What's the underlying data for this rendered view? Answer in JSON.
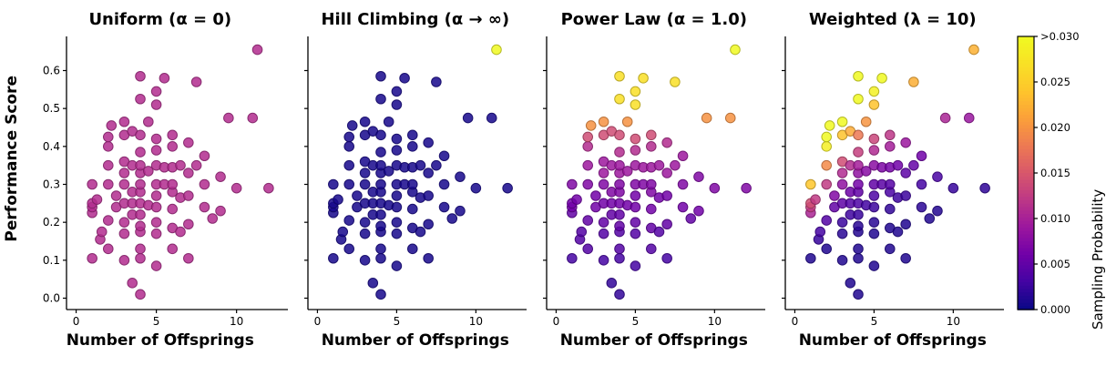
{
  "chart_data": {
    "type": "scatter",
    "xlabel": "Number of Offsprings",
    "ylabel": "Performance Score",
    "colormap": "plasma",
    "xlim": [
      -0.6,
      13.2
    ],
    "ylim": [
      -0.03,
      0.69
    ],
    "x_ticks": {
      "values": [
        0,
        5,
        10
      ],
      "labels": [
        "0",
        "5",
        "10"
      ]
    },
    "y_ticks": {
      "values": [
        0.0,
        0.1,
        0.2,
        0.3,
        0.4,
        0.5,
        0.6
      ],
      "labels": [
        "0.0",
        "0.1",
        "0.2",
        "0.3",
        "0.4",
        "0.5",
        "0.6"
      ]
    },
    "points": [
      [
        1,
        0.105
      ],
      [
        1,
        0.225
      ],
      [
        1,
        0.24
      ],
      [
        1,
        0.25
      ],
      [
        1,
        0.3
      ],
      [
        1.3,
        0.26
      ],
      [
        1.5,
        0.155
      ],
      [
        1.6,
        0.175
      ],
      [
        2,
        0.13
      ],
      [
        2,
        0.205
      ],
      [
        2,
        0.3
      ],
      [
        2,
        0.35
      ],
      [
        2,
        0.4
      ],
      [
        2,
        0.425
      ],
      [
        2.2,
        0.455
      ],
      [
        2.5,
        0.24
      ],
      [
        2.5,
        0.27
      ],
      [
        3,
        0.1
      ],
      [
        3,
        0.17
      ],
      [
        3,
        0.2
      ],
      [
        3,
        0.25
      ],
      [
        3,
        0.3
      ],
      [
        3,
        0.33
      ],
      [
        3,
        0.36
      ],
      [
        3,
        0.43
      ],
      [
        3,
        0.465
      ],
      [
        3.5,
        0.04
      ],
      [
        3.5,
        0.22
      ],
      [
        3.5,
        0.25
      ],
      [
        3.5,
        0.28
      ],
      [
        3.5,
        0.35
      ],
      [
        3.5,
        0.44
      ],
      [
        4,
        0.01
      ],
      [
        4,
        0.105
      ],
      [
        4,
        0.13
      ],
      [
        4,
        0.175
      ],
      [
        4,
        0.19
      ],
      [
        4,
        0.22
      ],
      [
        4,
        0.25
      ],
      [
        4,
        0.28
      ],
      [
        4,
        0.3
      ],
      [
        4,
        0.33
      ],
      [
        4,
        0.35
      ],
      [
        4,
        0.385
      ],
      [
        4,
        0.43
      ],
      [
        4,
        0.525
      ],
      [
        4,
        0.585
      ],
      [
        4.5,
        0.245
      ],
      [
        4.5,
        0.335
      ],
      [
        4.5,
        0.465
      ],
      [
        5,
        0.085
      ],
      [
        5,
        0.17
      ],
      [
        5,
        0.2
      ],
      [
        5,
        0.24
      ],
      [
        5,
        0.27
      ],
      [
        5,
        0.3
      ],
      [
        5,
        0.35
      ],
      [
        5,
        0.39
      ],
      [
        5,
        0.42
      ],
      [
        5,
        0.51
      ],
      [
        5,
        0.545
      ],
      [
        5.5,
        0.3
      ],
      [
        5.5,
        0.345
      ],
      [
        5.5,
        0.58
      ],
      [
        6,
        0.13
      ],
      [
        6,
        0.185
      ],
      [
        6,
        0.235
      ],
      [
        6,
        0.28
      ],
      [
        6,
        0.3
      ],
      [
        6,
        0.345
      ],
      [
        6,
        0.4
      ],
      [
        6,
        0.43
      ],
      [
        6.5,
        0.175
      ],
      [
        6.5,
        0.265
      ],
      [
        6.5,
        0.35
      ],
      [
        7,
        0.105
      ],
      [
        7,
        0.195
      ],
      [
        7,
        0.27
      ],
      [
        7,
        0.33
      ],
      [
        7,
        0.41
      ],
      [
        7.5,
        0.35
      ],
      [
        7.5,
        0.57
      ],
      [
        8,
        0.24
      ],
      [
        8,
        0.3
      ],
      [
        8,
        0.375
      ],
      [
        8.5,
        0.21
      ],
      [
        9,
        0.23
      ],
      [
        9,
        0.32
      ],
      [
        9.5,
        0.475
      ],
      [
        10,
        0.29
      ],
      [
        11,
        0.475
      ],
      [
        11.3,
        0.655
      ],
      [
        12,
        0.29
      ]
    ],
    "panels": [
      {
        "title": "Uniform (α = 0)",
        "const_prob": 0.011
      },
      {
        "title": "Hill Climbing (α → ∞)",
        "const_prob": 0.0005,
        "overrides": {
          "91": 0.031
        }
      },
      {
        "title": "Power Law (α = 1.0)",
        "probs": [
          0.003,
          0.005,
          0.006,
          0.006,
          0.007,
          0.006,
          0.004,
          0.004,
          0.004,
          0.005,
          0.007,
          0.009,
          0.011,
          0.014,
          0.02,
          0.006,
          0.006,
          0.003,
          0.004,
          0.005,
          0.006,
          0.007,
          0.009,
          0.009,
          0.014,
          0.02,
          0.002,
          0.005,
          0.006,
          0.007,
          0.009,
          0.014,
          0.002,
          0.003,
          0.004,
          0.004,
          0.005,
          0.005,
          0.006,
          0.007,
          0.007,
          0.009,
          0.009,
          0.011,
          0.014,
          0.027,
          0.027,
          0.006,
          0.009,
          0.02,
          0.003,
          0.004,
          0.005,
          0.006,
          0.006,
          0.007,
          0.009,
          0.011,
          0.014,
          0.027,
          0.027,
          0.007,
          0.009,
          0.027,
          0.004,
          0.005,
          0.006,
          0.007,
          0.007,
          0.009,
          0.011,
          0.014,
          0.004,
          0.006,
          0.009,
          0.003,
          0.005,
          0.006,
          0.009,
          0.011,
          0.009,
          0.027,
          0.006,
          0.007,
          0.009,
          0.005,
          0.006,
          0.007,
          0.02,
          0.007,
          0.02,
          0.031,
          0.007
        ]
      },
      {
        "title": "Weighted (λ = 10)",
        "probs": [
          0.001,
          0.0103,
          0.0124,
          0.0141,
          0.0243,
          0.0122,
          0.0022,
          0.003,
          0.001,
          0.0039,
          0.0122,
          0.0193,
          0.0288,
          0.031,
          0.031,
          0.005,
          0.0071,
          0.001,
          0.0015,
          0.0024,
          0.0047,
          0.0081,
          0.0108,
          0.014,
          0.0239,
          0.0302,
          0.001,
          0.0027,
          0.004,
          0.0056,
          0.011,
          0.0219,
          0.001,
          0.001,
          0.001,
          0.0012,
          0.0015,
          0.0024,
          0.0035,
          0.0049,
          0.0061,
          0.0081,
          0.0096,
          0.0128,
          0.0179,
          0.031,
          0.031,
          0.0029,
          0.0075,
          0.0201,
          0.001,
          0.001,
          0.0014,
          0.0025,
          0.0035,
          0.0049,
          0.0077,
          0.0107,
          0.0133,
          0.0239,
          0.0291,
          0.0044,
          0.0067,
          0.031,
          0.001,
          0.001,
          0.0019,
          0.0033,
          0.0041,
          0.0062,
          0.0096,
          0.0119,
          0.001,
          0.0026,
          0.0059,
          0.001,
          0.001,
          0.0025,
          0.0046,
          0.0089,
          0.0051,
          0.0222,
          0.0016,
          0.003,
          0.0059,
          0.001,
          0.0012,
          0.0033,
          0.0102,
          0.0022,
          0.0088,
          0.0224,
          0.0018
        ]
      }
    ],
    "colorbar": {
      "label": "Sampling Probability",
      "vmax": 0.03,
      "tick_values": [
        0,
        0.005,
        0.01,
        0.015,
        0.02,
        0.025,
        0.03
      ],
      "tick_labels": [
        "0.000",
        "0.005",
        "0.010",
        "0.015",
        "0.020",
        "0.025",
        ">0.030"
      ]
    },
    "style": {
      "background": "#ffffff",
      "axis_color": "#000000",
      "plasma_low": "#0d0887",
      "plasma_high": "#f0f921"
    }
  }
}
